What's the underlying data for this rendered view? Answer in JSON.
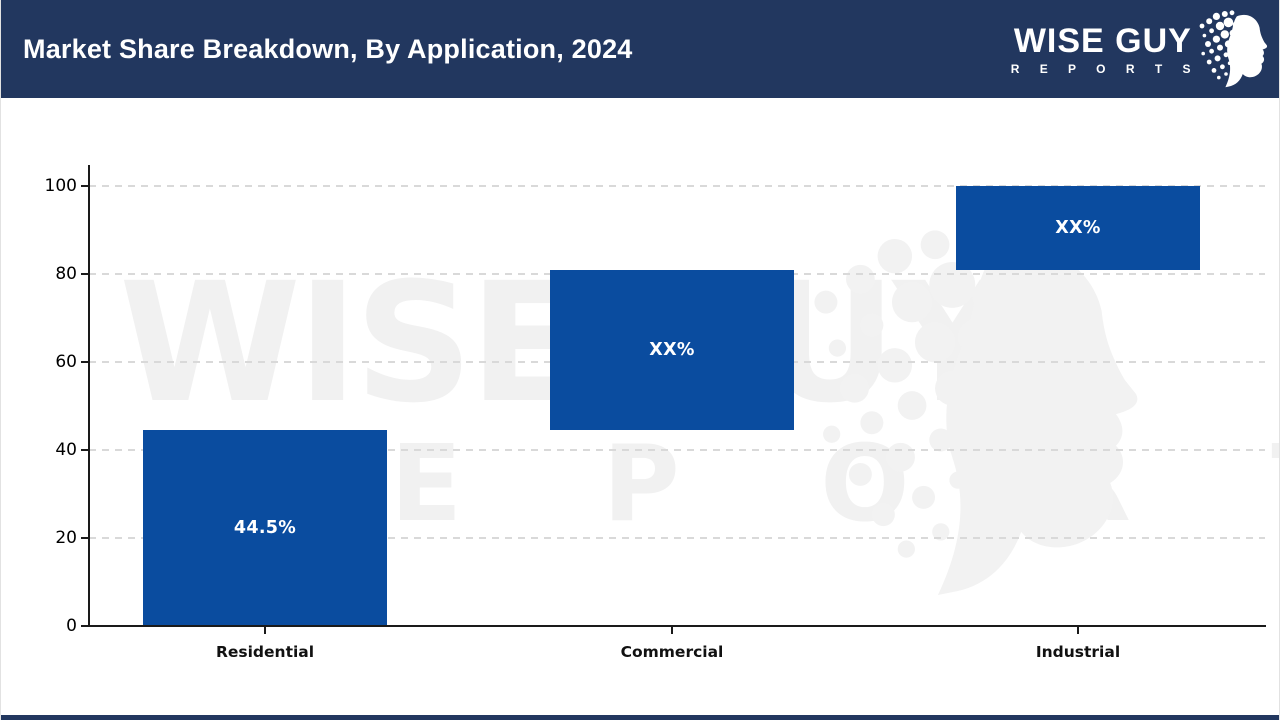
{
  "header": {
    "title": "Market Share Breakdown, By Application, 2024",
    "bg_color": "#22375f",
    "logo": {
      "line1": "WISE GUY",
      "line2": "R E P O R T S"
    }
  },
  "watermark": {
    "line1": "WISE GUY",
    "line2": "R E P O R T S",
    "color": "#f1f1f1"
  },
  "chart_data": {
    "type": "bar",
    "subtype": "floating-segment",
    "title": "Market Share Breakdown, By Application, 2024",
    "categories": [
      "Residential",
      "Commercial",
      "Industrial"
    ],
    "segments": [
      {
        "category": "Residential",
        "label": "44.5%",
        "start": 0,
        "end": 44.5
      },
      {
        "category": "Commercial",
        "label": "XX%",
        "start": 44.5,
        "end": 81
      },
      {
        "category": "Industrial",
        "label": "XX%",
        "start": 81,
        "end": 100
      }
    ],
    "yticks": [
      0,
      20,
      40,
      60,
      80,
      100
    ],
    "ylim": [
      0,
      100
    ],
    "xlabel": "",
    "ylabel": "",
    "bar_color": "#0a4c9f",
    "grid": true,
    "gridline_style": "dashed",
    "gridline_color": "#d9d9d9",
    "legend": "none"
  }
}
